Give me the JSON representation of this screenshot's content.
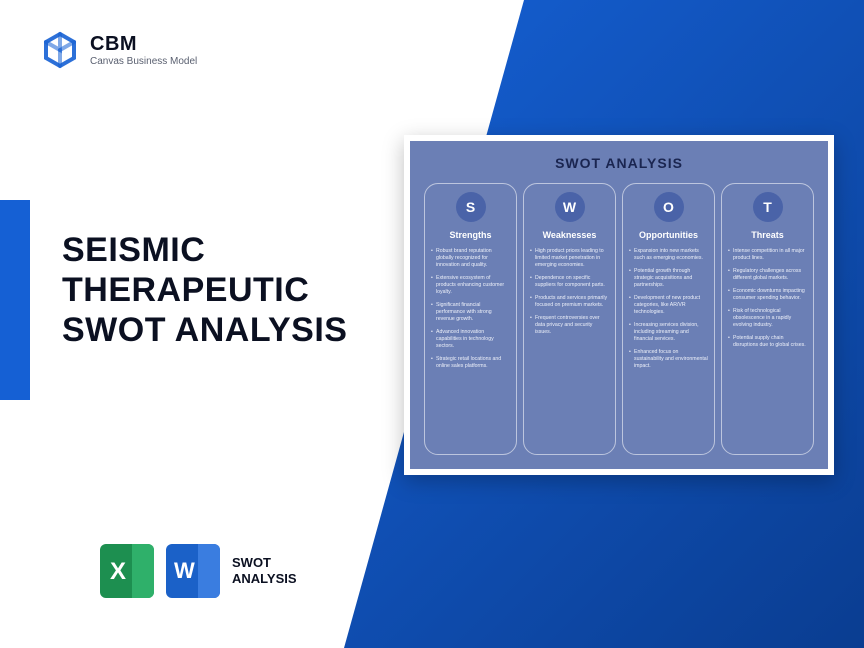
{
  "logo": {
    "title": "CBM",
    "subtitle": "Canvas Business Model",
    "color": "#1560d4"
  },
  "main_title": {
    "line1": "SEISMIC",
    "line2": "THERAPEUTIC",
    "line3": "SWOT ANALYSIS",
    "fontsize": 34,
    "color": "#0b1021"
  },
  "accent_bar_color": "#1560d4",
  "diagonal_bg": {
    "from": "#1560d4",
    "to": "#0a3d91"
  },
  "file_badge": {
    "line1": "SWOT",
    "line2": "ANALYSIS"
  },
  "swot_card": {
    "title": "SWOT ANALYSIS",
    "background": "#6b7fb5",
    "border_color": "#ffffff",
    "letter_circle_bg": "#4a63a8",
    "columns": [
      {
        "letter": "S",
        "heading": "Strengths",
        "items": [
          "Robust brand reputation globally recognized for innovation and quality.",
          "Extensive ecosystem of products enhancing customer loyalty.",
          "Significant financial performance with strong revenue growth.",
          "Advanced innovation capabilities in technology sectors.",
          "Strategic retail locations and online sales platforms."
        ]
      },
      {
        "letter": "W",
        "heading": "Weaknesses",
        "items": [
          "High product prices leading to limited market penetration in emerging economies.",
          "Dependence on specific suppliers for component parts.",
          "Products and services primarily focused on premium markets.",
          "Frequent controversies over data privacy and security issues."
        ]
      },
      {
        "letter": "O",
        "heading": "Opportunities",
        "items": [
          "Expansion into new markets such as emerging economies.",
          "Potential growth through strategic acquisitions and partnerships.",
          "Development of new product categories, like AR/VR technologies.",
          "Increasing services division, including streaming and financial services.",
          "Enhanced focus on sustainability and environmental impact."
        ]
      },
      {
        "letter": "T",
        "heading": "Threats",
        "items": [
          "Intense competition in all major product lines.",
          "Regulatory challenges across different global markets.",
          "Economic downturns impacting consumer spending behavior.",
          "Risk of technological obsolescence in a rapidly evolving industry.",
          "Potential supply chain disruptions due to global crises."
        ]
      }
    ]
  }
}
